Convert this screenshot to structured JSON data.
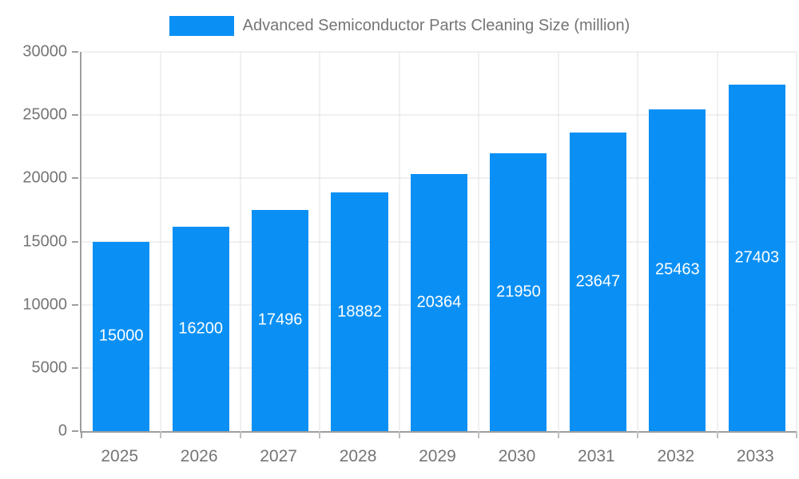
{
  "chart_data": {
    "type": "bar",
    "title": "Advanced Semiconductor Parts Cleaning Size (million)",
    "categories": [
      "2025",
      "2026",
      "2027",
      "2028",
      "2029",
      "2030",
      "2031",
      "2032",
      "2033"
    ],
    "values": [
      15000,
      16200,
      17496,
      18882,
      20364,
      21950,
      23647,
      25463,
      27403
    ],
    "xlabel": "",
    "ylabel": "",
    "ylim": [
      0,
      30000
    ],
    "ytick_step": 5000,
    "ytick_labels": [
      "0",
      "5000",
      "10000",
      "15000",
      "20000",
      "25000",
      "30000"
    ],
    "legend_position": "top-center",
    "grid": true,
    "bar_labels": "white values centered inside bars"
  },
  "colors": {
    "bar": "#0a90f5",
    "bar_label": "#ffffff",
    "grid": "#e2e2e2",
    "axis": "#9e9e9e",
    "x_tick": "#c0c0c0",
    "tick_label": "#757575",
    "legend_text": "#757575",
    "background": "#ffffff"
  }
}
